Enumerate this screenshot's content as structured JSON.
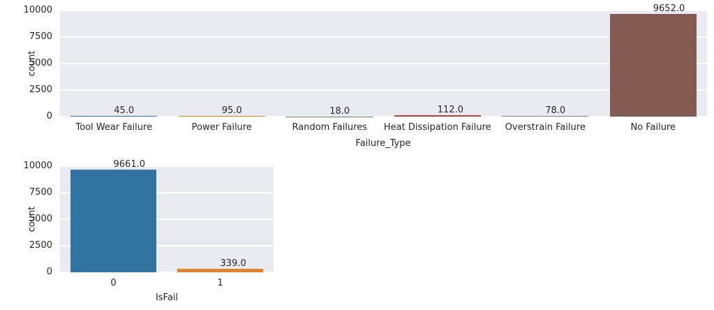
{
  "theme": {
    "figure_bg": "#ffffff",
    "plot_bg": "#eaeaf2",
    "grid_color": "#ffffff",
    "text_color": "#262626"
  },
  "chart_data": [
    {
      "type": "bar",
      "title": "",
      "xlabel": "Failure_Type",
      "ylabel": "count",
      "categories": [
        "Tool Wear Failure",
        "Power Failure",
        "Random Failures",
        "Heat Dissipation Failure",
        "Overstrain Failure",
        "No Failure"
      ],
      "values": [
        45.0,
        95.0,
        18.0,
        112.0,
        78.0,
        9652.0
      ],
      "bar_labels": [
        "45.0",
        "95.0",
        "18.0",
        "112.0",
        "78.0",
        "9652.0"
      ],
      "bar_colors": [
        "#3274a1",
        "#e1812c",
        "#3a923a",
        "#c03d3e",
        "#9372b2",
        "#845b53"
      ],
      "ylim": [
        0,
        10000
      ],
      "yticks": [
        0,
        2500,
        5000,
        7500,
        10000
      ],
      "ytick_labels": [
        "0",
        "2500",
        "5000",
        "7500",
        "10000"
      ],
      "grid": true,
      "legend_position": "none"
    },
    {
      "type": "bar",
      "title": "",
      "xlabel": "IsFail",
      "ylabel": "count",
      "categories": [
        "0",
        "1"
      ],
      "values": [
        9661.0,
        339.0
      ],
      "bar_labels": [
        "9661.0",
        "339.0"
      ],
      "bar_colors": [
        "#3274a1",
        "#e1812c"
      ],
      "ylim": [
        0,
        10000
      ],
      "yticks": [
        0,
        2500,
        5000,
        7500,
        10000
      ],
      "ytick_labels": [
        "0",
        "2500",
        "5000",
        "7500",
        "10000"
      ],
      "grid": true,
      "legend_position": "none"
    }
  ]
}
